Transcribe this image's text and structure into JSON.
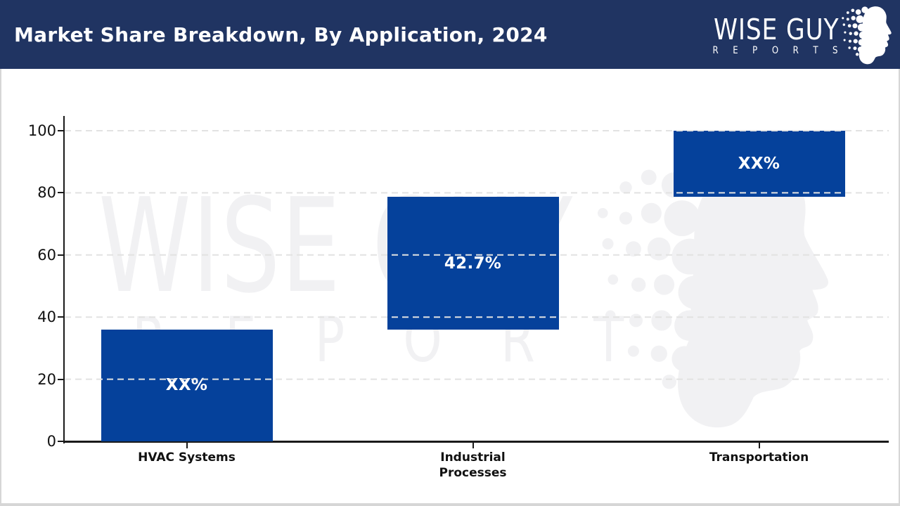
{
  "header": {
    "title": "Market Share Breakdown, By Application, 2024",
    "logo": {
      "line1": "WISE GUY",
      "line2": "R E P O R T S"
    }
  },
  "watermark": {
    "line1": "WISE GUY",
    "line2": "R E P O R T S"
  },
  "chart_data": {
    "type": "bar",
    "subtype": "floating-segment-bar",
    "title": "Market Share Breakdown, By Application, 2024",
    "categories": [
      "HVAC Systems",
      "Industrial Processes",
      "Transportation"
    ],
    "categories_display": [
      [
        "HVAC Systems"
      ],
      [
        "Industrial",
        "Processes"
      ],
      [
        "Transportation"
      ]
    ],
    "segments": [
      {
        "category": "HVAC Systems",
        "from": 0,
        "to": 36,
        "label": "XX%"
      },
      {
        "category": "Industrial Processes",
        "from": 36,
        "to": 78.7,
        "label": "42.7%"
      },
      {
        "category": "Transportation",
        "from": 78.7,
        "to": 100,
        "label": "XX%"
      }
    ],
    "ylim": [
      0,
      100
    ],
    "yticks": [
      0,
      20,
      40,
      60,
      80,
      100
    ],
    "xlabel": "",
    "ylabel": "",
    "grid": "horizontal-dashed",
    "legend": "none",
    "bar_color": "#05419b"
  },
  "colors": {
    "header_bg": "#203462",
    "bar": "#05419b",
    "axis": "#1a1a1a",
    "grid": "#e2e2e2",
    "watermark": "#f1f1f3",
    "border": "#d6d6d6",
    "tick_label": "#111111"
  }
}
